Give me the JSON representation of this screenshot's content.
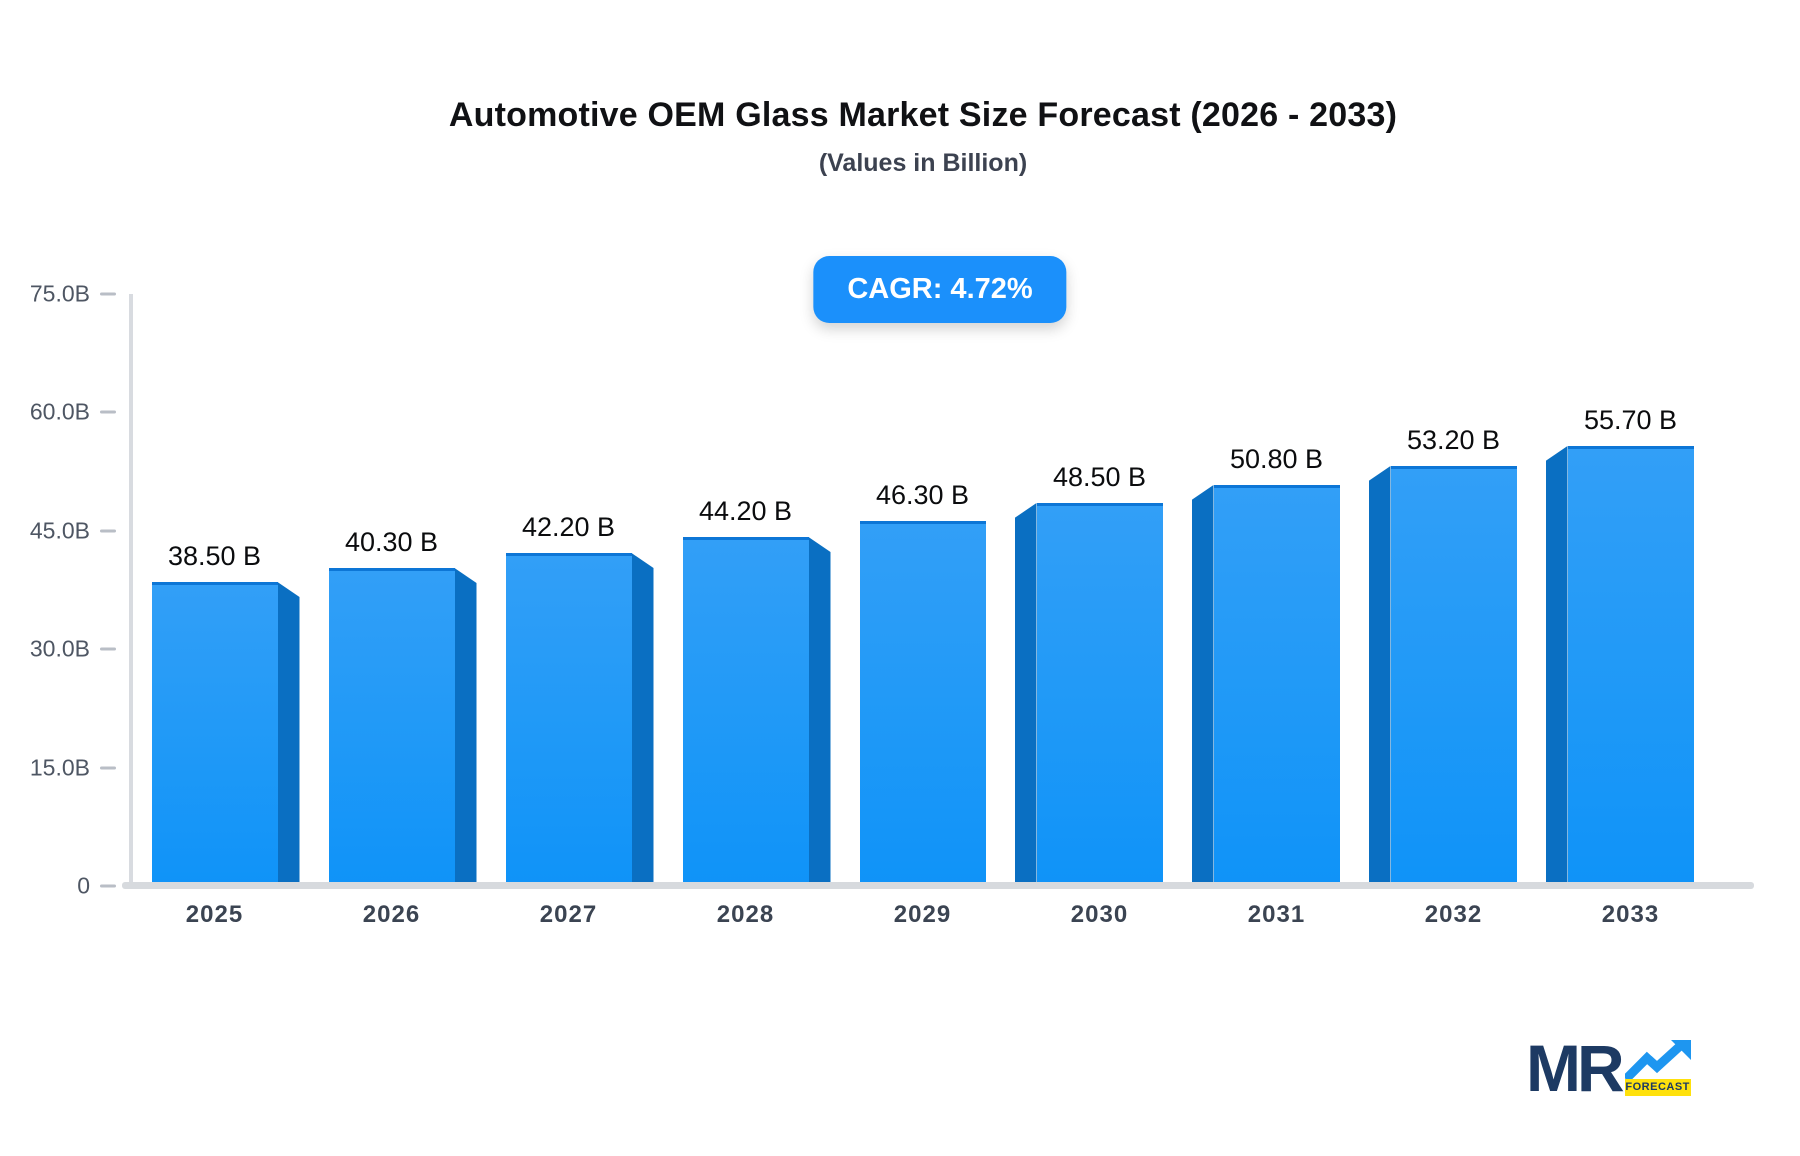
{
  "header": {
    "title": "Automotive OEM Glass Market Size Forecast (2026 - 2033)",
    "subtitle": "(Values in Billion)",
    "cagr_label": "CAGR: 4.72%"
  },
  "chart_data": {
    "type": "bar",
    "title": "Automotive OEM Glass Market Size Forecast (2026 - 2033)",
    "subtitle": "(Values in Billion)",
    "unit": "Billion",
    "cagr_pct": 4.72,
    "categories": [
      "2025",
      "2026",
      "2027",
      "2028",
      "2029",
      "2030",
      "2031",
      "2032",
      "2033"
    ],
    "values": [
      38.5,
      40.3,
      42.2,
      44.2,
      46.3,
      48.5,
      50.8,
      53.2,
      55.7
    ],
    "point_labels": [
      "38.50 B",
      "40.30 B",
      "42.20 B",
      "44.20 B",
      "46.30 B",
      "48.50 B",
      "50.80 B",
      "53.20 B",
      "55.70 B"
    ],
    "xlabel": "",
    "ylabel": "",
    "ylim": [
      0,
      75
    ],
    "y_ticks": [
      {
        "value": 75,
        "label": "75.0B"
      },
      {
        "value": 60,
        "label": "60.0B"
      },
      {
        "value": 45,
        "label": "45.0B"
      },
      {
        "value": 30,
        "label": "30.0B"
      },
      {
        "value": 15,
        "label": "15.0B"
      },
      {
        "value": 0,
        "label": "0"
      }
    ],
    "grid": false,
    "legend": "none",
    "bar_color_top": "#329ff7",
    "bar_color_bottom": "#0f93f8",
    "bar_side_color": "#0a6fc2",
    "accent_color": "#1b90fb"
  },
  "branding": {
    "logo_text": "MR",
    "logo_sub": "FORECAST"
  }
}
